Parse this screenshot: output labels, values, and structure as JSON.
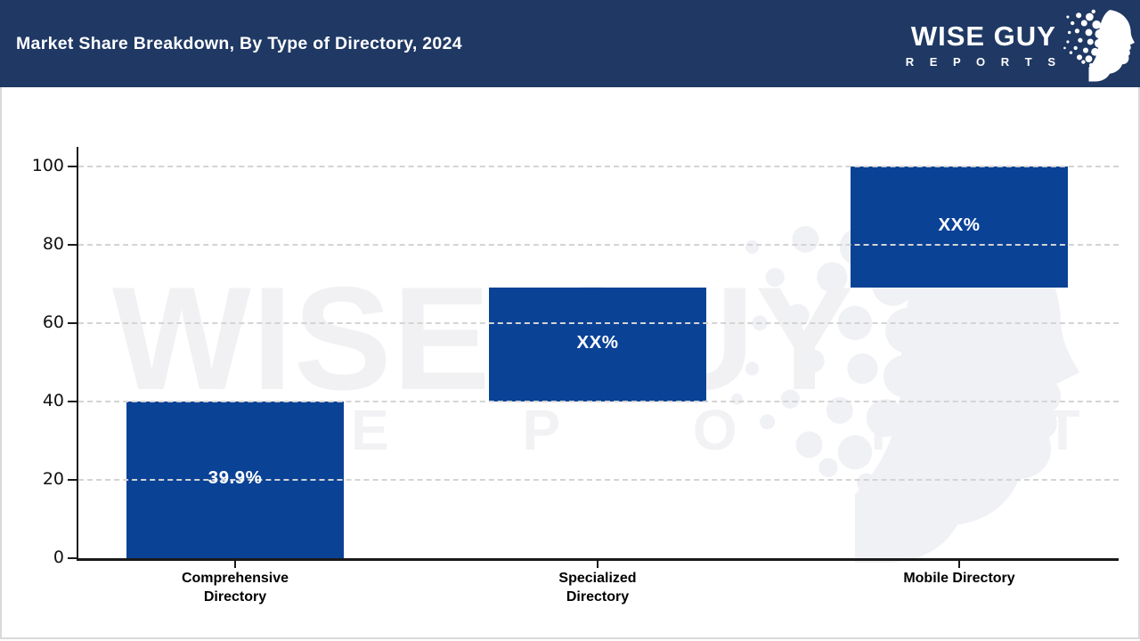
{
  "header": {
    "title": "Market Share Breakdown, By Type of Directory, 2024",
    "logo": {
      "wordmark": "WISE GUY",
      "subtitle": "R E P O R T S"
    }
  },
  "watermark": {
    "line1": "WISE GUY",
    "line2": "R E P O R T S"
  },
  "chart_data": {
    "type": "bar",
    "variant": "stacked-waterfall",
    "title": "Market Share Breakdown, By Type of Directory, 2024",
    "categories": [
      "Comprehensive Directory",
      "Specialized Directory",
      "Mobile Directory"
    ],
    "category_label_lines": [
      [
        "Comprehensive",
        "Directory"
      ],
      [
        "Specialized",
        "Directory"
      ],
      [
        "Mobile Directory"
      ]
    ],
    "segments": [
      {
        "category": "Comprehensive Directory",
        "start": 0,
        "end": 39.9,
        "label": "39.9%"
      },
      {
        "category": "Specialized Directory",
        "start": 39.9,
        "end": 69.2,
        "label": "XX%"
      },
      {
        "category": "Mobile Directory",
        "start": 69.2,
        "end": 100,
        "label": "XX%"
      }
    ],
    "yticks": [
      0,
      20,
      40,
      60,
      80,
      100
    ],
    "ylim": [
      0,
      105
    ],
    "xlabel": "",
    "ylabel": "",
    "grid": {
      "axis": "y",
      "style": "dashed",
      "color": "#d4d4d4"
    },
    "legend_position": "none",
    "colors": {
      "bar": "#0A4296",
      "bar_label": "#ffffff",
      "axis": "#1a1a1a",
      "header_bg": "#1F3864",
      "watermark": "#f1f1f3"
    }
  }
}
